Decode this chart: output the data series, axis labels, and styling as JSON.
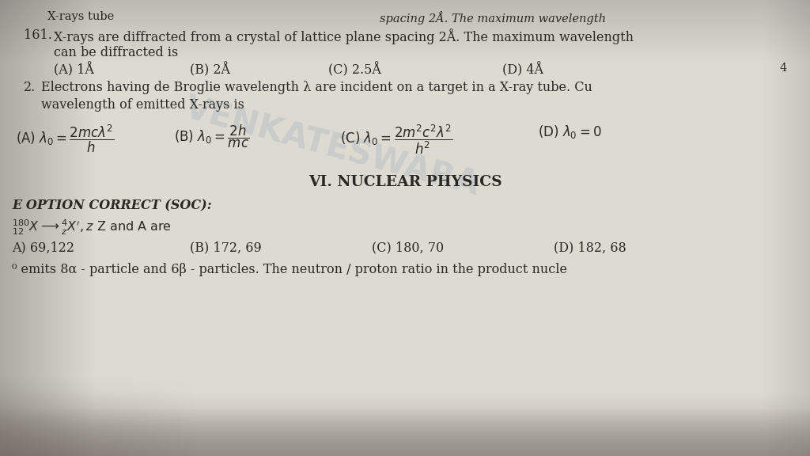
{
  "bg_center": "#dedad2",
  "bg_edge_left": "#b0aca4",
  "bg_edge_right": "#c8c4bc",
  "bg_top": "#ccc8c0",
  "txt_color": "#2a2825",
  "txt_light": "#555050",
  "watermark_color": "#9aacba",
  "watermark_alpha": 0.3,
  "line_top1_left": "X-rays tube",
  "line_top1_right": "spacing 2Å. The maximum wavelength",
  "q161_num": "161.",
  "q161_line1": "X-rays are diffracted from a crystal of lattice plane spacing 2Å. The maximum wavelength",
  "q161_line2": "can be diffracted is",
  "q161_A": "(A) 1Å",
  "q161_B": "(B) 2Å",
  "q161_C": "(C) 2.5Å",
  "q161_D": "(D) 4Å",
  "q162_num": "2.",
  "q162_line1": "Electrons having de Broglie wavelength λ are incident on a target in a X-ray tube. Cu",
  "q162_line2": "wavelength of emitted X-rays is",
  "section": "VI. NUCLEAR PHYSICS",
  "option_header": "E OPTION CORRECT (SOC):",
  "nuc_A": "A) 69,122",
  "nuc_B": "(B) 172, 69",
  "nuc_C": "(C) 180, 70",
  "nuc_D": "(D) 182, 68",
  "last_line": "⁰ emits 8α - particle and 6β - particles. The neutron / proton ratio in the product nucle",
  "watermark": "VENKATESWARA",
  "page_num": "4"
}
